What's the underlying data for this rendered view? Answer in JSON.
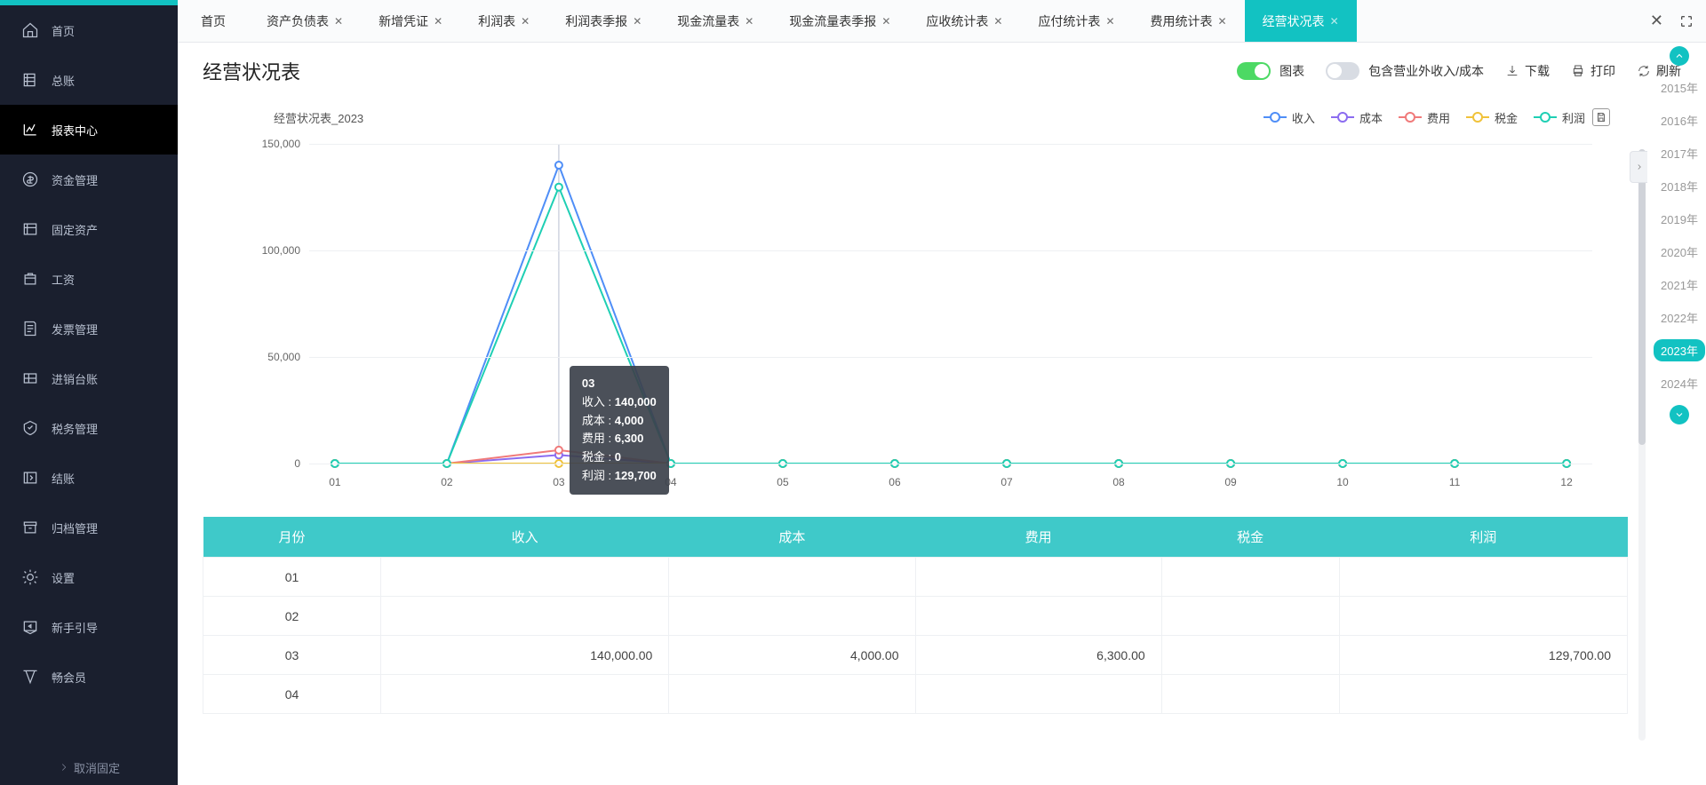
{
  "sidebar": {
    "items": [
      {
        "label": "首页",
        "icon": "home"
      },
      {
        "label": "总账",
        "icon": "ledger"
      },
      {
        "label": "报表中心",
        "icon": "chart",
        "active": true
      },
      {
        "label": "资金管理",
        "icon": "money"
      },
      {
        "label": "固定资产",
        "icon": "asset"
      },
      {
        "label": "工资",
        "icon": "salary"
      },
      {
        "label": "发票管理",
        "icon": "invoice"
      },
      {
        "label": "进销台账",
        "icon": "stock"
      },
      {
        "label": "税务管理",
        "icon": "tax"
      },
      {
        "label": "结账",
        "icon": "close-book"
      },
      {
        "label": "归档管理",
        "icon": "archive"
      },
      {
        "label": "设置",
        "icon": "gear"
      },
      {
        "label": "新手引导",
        "icon": "guide"
      },
      {
        "label": "畅会员",
        "icon": "vip"
      }
    ],
    "footer": "取消固定"
  },
  "tabs": {
    "items": [
      {
        "label": "首页",
        "closable": false
      },
      {
        "label": "资产负债表",
        "closable": true
      },
      {
        "label": "新增凭证",
        "closable": true
      },
      {
        "label": "利润表",
        "closable": true
      },
      {
        "label": "利润表季报",
        "closable": true
      },
      {
        "label": "现金流量表",
        "closable": true
      },
      {
        "label": "现金流量表季报",
        "closable": true
      },
      {
        "label": "应收统计表",
        "closable": true
      },
      {
        "label": "应付统计表",
        "closable": true
      },
      {
        "label": "费用统计表",
        "closable": true
      },
      {
        "label": "经营状况表",
        "closable": true,
        "active": true
      }
    ]
  },
  "page": {
    "title": "经营状况表",
    "toggle_chart": {
      "label": "图表",
      "on": true
    },
    "toggle_extra": {
      "label": "包含营业外收入/成本",
      "on": false
    },
    "actions": {
      "download": "下载",
      "print": "打印",
      "refresh": "刷新"
    }
  },
  "year_rail": {
    "years": [
      "2015年",
      "2016年",
      "2017年",
      "2018年",
      "2019年",
      "2020年",
      "2021年",
      "2022年",
      "2023年",
      "2024年"
    ],
    "active": "2023年"
  },
  "chart": {
    "title": "经营状况表_2023",
    "type": "line",
    "ylim": [
      0,
      150000
    ],
    "yticks": [
      0,
      50000,
      100000,
      150000
    ],
    "ytick_labels": [
      "0",
      "50,000",
      "100,000",
      "150,000"
    ],
    "xlabels": [
      "01",
      "02",
      "03",
      "04",
      "05",
      "06",
      "07",
      "08",
      "09",
      "10",
      "11",
      "12"
    ],
    "series": [
      {
        "name": "收入",
        "color": "#4f8ef7",
        "values": [
          0,
          0,
          140000,
          0,
          0,
          0,
          0,
          0,
          0,
          0,
          0,
          0
        ]
      },
      {
        "name": "成本",
        "color": "#8b6cf0",
        "values": [
          0,
          0,
          4000,
          0,
          0,
          0,
          0,
          0,
          0,
          0,
          0,
          0
        ]
      },
      {
        "name": "费用",
        "color": "#f07a7a",
        "values": [
          0,
          0,
          6300,
          0,
          0,
          0,
          0,
          0,
          0,
          0,
          0,
          0
        ]
      },
      {
        "name": "税金",
        "color": "#f0c23a",
        "values": [
          0,
          0,
          0,
          0,
          0,
          0,
          0,
          0,
          0,
          0,
          0,
          0
        ]
      },
      {
        "name": "利润",
        "color": "#1fcfb4",
        "values": [
          0,
          0,
          129700,
          0,
          0,
          0,
          0,
          0,
          0,
          0,
          0,
          0
        ]
      }
    ],
    "tooltip": {
      "header": "03",
      "rows": [
        {
          "label": "收入",
          "value": "140,000"
        },
        {
          "label": "成本",
          "value": "4,000"
        },
        {
          "label": "费用",
          "value": "6,300"
        },
        {
          "label": "税金",
          "value": "0"
        },
        {
          "label": "利润",
          "value": "129,700"
        }
      ]
    },
    "grid_color": "#eef0f3",
    "background_color": "#ffffff"
  },
  "table": {
    "columns": [
      "月份",
      "收入",
      "成本",
      "费用",
      "税金",
      "利润"
    ],
    "rows": [
      {
        "month": "01",
        "cells": [
          "",
          "",
          "",
          "",
          ""
        ]
      },
      {
        "month": "02",
        "cells": [
          "",
          "",
          "",
          "",
          ""
        ]
      },
      {
        "month": "03",
        "cells": [
          "140,000.00",
          "4,000.00",
          "6,300.00",
          "",
          "129,700.00"
        ]
      },
      {
        "month": "04",
        "cells": [
          "",
          "",
          "",
          "",
          ""
        ]
      }
    ]
  }
}
